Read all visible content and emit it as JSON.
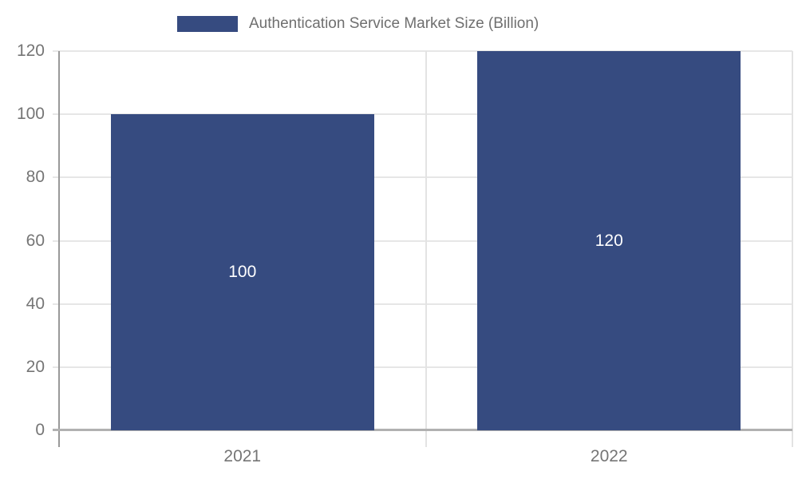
{
  "legend": {
    "label": "Authentication Service Market Size (Billion)"
  },
  "chart_data": {
    "type": "bar",
    "categories": [
      "2021",
      "2022"
    ],
    "series": [
      {
        "name": "Authentication Service Market Size (Billion)",
        "values": [
          100,
          120
        ]
      }
    ],
    "bar_value_labels": [
      "100",
      "120"
    ],
    "title": "",
    "xlabel": "",
    "ylabel": "",
    "ylim": [
      0,
      120
    ],
    "yticks": [
      0,
      20,
      40,
      60,
      80,
      100,
      120
    ],
    "grid": true,
    "legend_position": "top",
    "bar_color": "#364B80",
    "bar_label_color": "#ffffff",
    "axis_text_color": "#757575",
    "grid_color": "#e6e6e6",
    "x_axis_line_color": "#b1b1b1",
    "y_axis_line_color": "#999999"
  }
}
